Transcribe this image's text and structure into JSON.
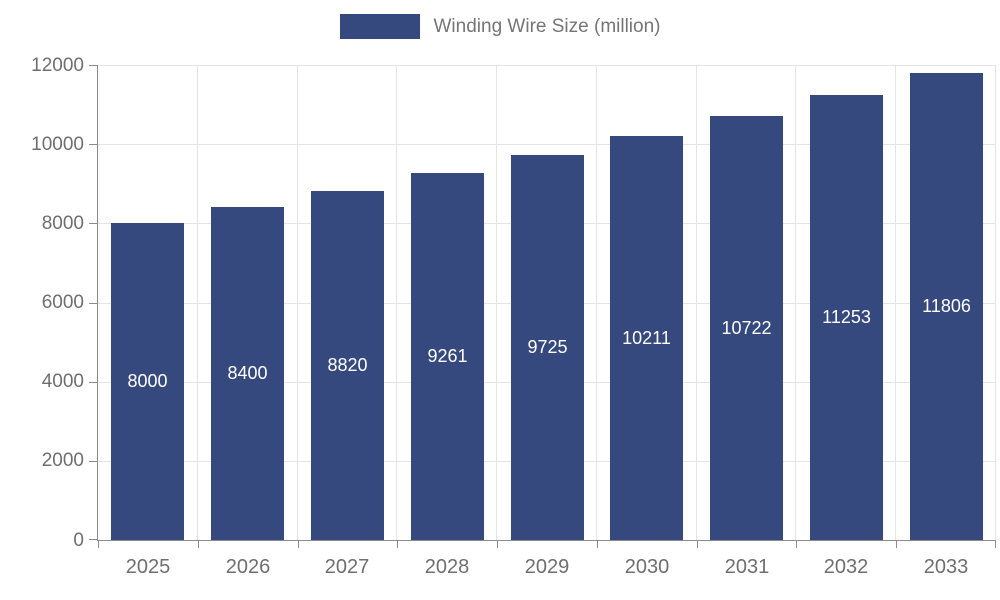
{
  "chart_data": {
    "type": "bar",
    "title": "",
    "legend": {
      "label": "Winding Wire Size (million)",
      "position": "top-center"
    },
    "categories": [
      "2025",
      "2026",
      "2027",
      "2028",
      "2029",
      "2030",
      "2031",
      "2032",
      "2033"
    ],
    "series": [
      {
        "name": "Winding Wire Size (million)",
        "values": [
          8000,
          8400,
          8820,
          9261,
          9725,
          10211,
          10722,
          11253,
          11806
        ]
      }
    ],
    "xlabel": "",
    "ylabel": "",
    "ylim": [
      0,
      12000
    ],
    "yticks": [
      0,
      2000,
      4000,
      6000,
      8000,
      10000,
      12000
    ],
    "grid": true,
    "bar_color": "#35497E",
    "bar_value_label_color": "#ffffff",
    "axis_text_color": "#6f6f6f",
    "legend_text_color": "#757575",
    "grid_color": "#e4e4e4",
    "axis_line_color": "#8c8c8c",
    "background": "#ffffff"
  }
}
